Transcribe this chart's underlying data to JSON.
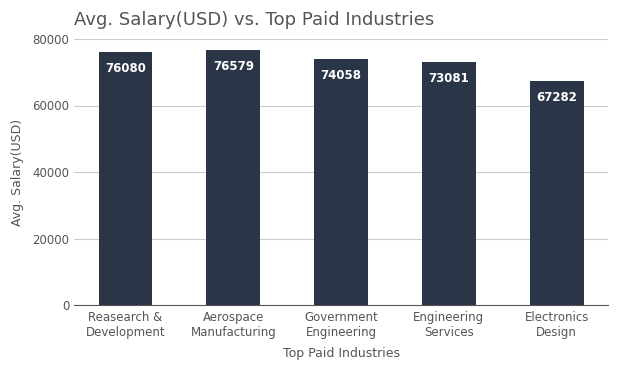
{
  "title": "Avg. Salary(USD) vs. Top Paid Industries",
  "xlabel": "Top Paid Industries",
  "ylabel": "Avg. Salary(USD)",
  "categories": [
    "Reasearch &\nDevelopment",
    "Aerospace\nManufacturing",
    "Government\nEngineering",
    "Engineering\nServices",
    "Electronics\nDesign"
  ],
  "values": [
    76080,
    76579,
    74058,
    73081,
    67282
  ],
  "bar_color": "#2b3548",
  "label_color": "#ffffff",
  "title_color": "#555555",
  "axis_label_color": "#555555",
  "tick_color": "#555555",
  "grid_color": "#cccccc",
  "background_color": "#ffffff",
  "ylim": [
    0,
    80000
  ],
  "yticks": [
    0,
    20000,
    40000,
    60000,
    80000
  ],
  "title_fontsize": 13,
  "axis_label_fontsize": 9,
  "tick_fontsize": 8.5,
  "bar_label_fontsize": 8.5,
  "bar_width": 0.5
}
